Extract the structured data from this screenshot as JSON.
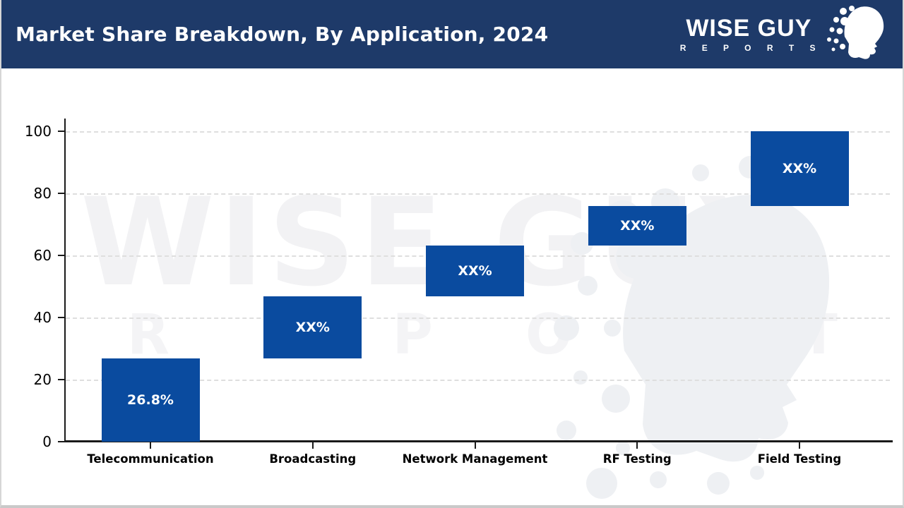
{
  "header": {
    "title": "Market Share Breakdown, By Application, 2024",
    "bg_color": "#1e3a69",
    "logo": {
      "line1": "WISE GUY",
      "line2": "R E P O R T S"
    }
  },
  "watermark": {
    "line1": "WISE GUY",
    "line2": "R E P O R T S"
  },
  "chart_data": {
    "type": "bar",
    "subtype": "waterfall",
    "title": "Market Share Breakdown, By Application, 2024",
    "categories": [
      "Telecommunication",
      "Broadcasting",
      "Network Management",
      "RF Testing",
      "Field Testing"
    ],
    "bars": [
      {
        "category": "Telecommunication",
        "start": 0,
        "end": 26.8,
        "label": "26.8%"
      },
      {
        "category": "Broadcasting",
        "start": 26.8,
        "end": 46.8,
        "label": "XX%"
      },
      {
        "category": "Network Management",
        "start": 46.8,
        "end": 63.1,
        "label": "XX%"
      },
      {
        "category": "RF Testing",
        "start": 63.1,
        "end": 76.0,
        "label": "XX%"
      },
      {
        "category": "Field Testing",
        "start": 76.0,
        "end": 100,
        "label": "XX%"
      }
    ],
    "xlabel": "",
    "ylabel": "",
    "ylim": [
      0,
      105
    ],
    "yticks": [
      0,
      20,
      40,
      60,
      80,
      100
    ],
    "grid": "horizontal-dashed",
    "legend": "none",
    "bar_color": "#0a4b9f",
    "bar_label_color": "#ffffff",
    "axis_color": "#1a1a1a"
  }
}
